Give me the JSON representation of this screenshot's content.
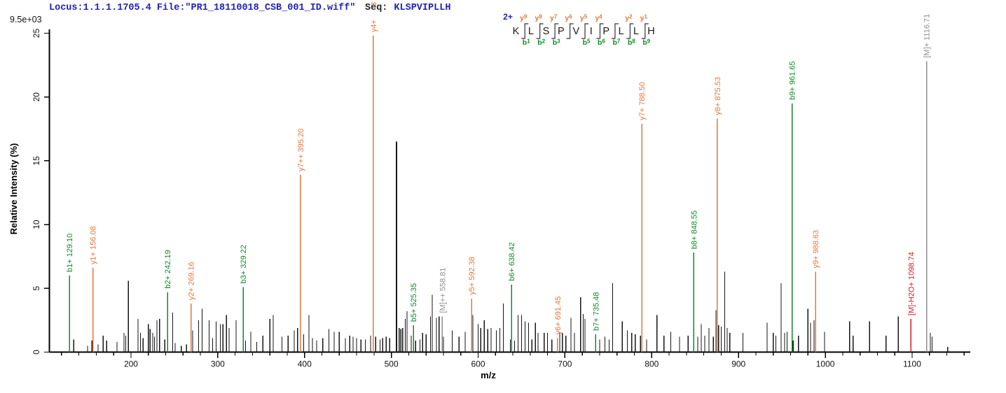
{
  "header": {
    "locus_file": "Locus:1.1.1.1705.4 File:\"PR1_18110018_CSB_001_ID.wiff\"",
    "seq_label": "Seq:",
    "seq_value": "KLSPVIPLLH",
    "max_intensity": "9.5e+03"
  },
  "peptide_diagram": {
    "charge": "2+",
    "residues": [
      "K",
      "L",
      "S",
      "P",
      "V",
      "I",
      "P",
      "L",
      "L",
      "H"
    ],
    "y_ions": [
      "y9",
      "y8",
      "y7",
      "y6",
      "y5",
      "y4",
      null,
      "y2",
      "y1"
    ],
    "b_ions": [
      "b1",
      "b2",
      "b3",
      null,
      "b5",
      "b6",
      "b7",
      "b8",
      "b9"
    ]
  },
  "colors": {
    "b_ion": "#108a28",
    "y_ion": "#e2793a",
    "precursor": "#8f8f8f",
    "neutral_loss": "#cc1c1c",
    "noise": "#151515",
    "header_blue": "#2222bb",
    "axis": "#000000"
  },
  "chart_data": {
    "type": "bar",
    "title": "",
    "xlabel": "m/z",
    "ylabel": "Relative  Intensity (%)",
    "xlim": [
      106,
      1167
    ],
    "ylim": [
      0,
      25
    ],
    "x_major_ticks": [
      200,
      300,
      400,
      500,
      600,
      700,
      800,
      900,
      1000,
      1100
    ],
    "x_minor_step": 20,
    "y_ticks": [
      0,
      5,
      10,
      15,
      20,
      25
    ],
    "grid": false,
    "legend": "none",
    "top_fragment": "3",
    "labeled_peaks": [
      {
        "mz": 129.1,
        "intensity": 6.0,
        "label": "b1+ 129.10",
        "ion": "b"
      },
      {
        "mz": 156.08,
        "intensity": 6.6,
        "label": "y1+ 156.08",
        "ion": "y"
      },
      {
        "mz": 242.19,
        "intensity": 4.7,
        "label": "b2+ 242.19",
        "ion": "b"
      },
      {
        "mz": 269.16,
        "intensity": 3.8,
        "label": "y2+ 269.16",
        "ion": "y"
      },
      {
        "mz": 329.22,
        "intensity": 5.1,
        "label": "b3+ 329.22",
        "ion": "b"
      },
      {
        "mz": 395.2,
        "intensity": 13.9,
        "label": "y7++ 395.20",
        "ion": "y"
      },
      {
        "mz": 479.3,
        "intensity": 24.8,
        "label": "y4+",
        "ion": "y"
      },
      {
        "mz": 525.35,
        "intensity": 2.1,
        "label": "b5+ 525.35",
        "ion": "b"
      },
      {
        "mz": 558.81,
        "intensity": 2.8,
        "label": "[M]++ 558.81",
        "ion": "M"
      },
      {
        "mz": 592.38,
        "intensity": 4.2,
        "label": "y5+ 592.38",
        "ion": "y"
      },
      {
        "mz": 638.42,
        "intensity": 5.3,
        "label": "b6+ 638.42",
        "ion": "b"
      },
      {
        "mz": 691.45,
        "intensity": 1.1,
        "label": "y6+ 691.45",
        "ion": "y"
      },
      {
        "mz": 735.48,
        "intensity": 1.4,
        "label": "b7+ 735.48",
        "ion": "b"
      },
      {
        "mz": 788.5,
        "intensity": 17.9,
        "label": "y7+ 788.50",
        "ion": "y"
      },
      {
        "mz": 848.55,
        "intensity": 7.8,
        "label": "b8+ 848.55",
        "ion": "b"
      },
      {
        "mz": 875.53,
        "intensity": 18.3,
        "label": "y8+ 875.53",
        "ion": "y"
      },
      {
        "mz": 961.65,
        "intensity": 19.5,
        "label": "b9+ 961.65",
        "ion": "b"
      },
      {
        "mz": 988.63,
        "intensity": 6.3,
        "label": "y9+ 988.63",
        "ion": "y"
      },
      {
        "mz": 1098.74,
        "intensity": 2.6,
        "label": "[M]-H2O+ 1098.74",
        "ion": "loss"
      },
      {
        "mz": 1116.71,
        "intensity": 22.8,
        "label": "[M]+ 1116.71",
        "ion": "M"
      }
    ],
    "noise_peaks": [
      [
        134,
        1.0
      ],
      [
        150,
        0.5
      ],
      [
        155,
        0.9
      ],
      [
        162,
        0.6
      ],
      [
        168,
        1.3
      ],
      [
        172,
        0.9
      ],
      [
        184,
        0.8
      ],
      [
        192,
        1.5
      ],
      [
        194,
        1.3
      ],
      [
        197,
        5.6
      ],
      [
        208,
        2.6
      ],
      [
        211,
        1.5
      ],
      [
        214,
        1.1
      ],
      [
        220,
        2.2
      ],
      [
        222,
        1.8
      ],
      [
        225,
        1.5
      ],
      [
        227,
        1.2
      ],
      [
        230,
        2.5
      ],
      [
        233,
        2.6
      ],
      [
        239,
        1.0
      ],
      [
        248,
        3.1
      ],
      [
        251,
        0.7
      ],
      [
        258,
        0.5
      ],
      [
        264,
        0.6
      ],
      [
        271,
        1.7
      ],
      [
        278,
        2.5
      ],
      [
        282,
        3.4
      ],
      [
        290,
        2.5
      ],
      [
        294,
        1.1
      ],
      [
        298,
        2.4
      ],
      [
        303,
        2.2
      ],
      [
        306,
        2.2
      ],
      [
        310,
        2.9
      ],
      [
        313,
        1.9
      ],
      [
        321,
        2.5
      ],
      [
        332,
        0.9
      ],
      [
        338,
        1.6
      ],
      [
        345,
        0.8
      ],
      [
        352,
        1.3
      ],
      [
        360,
        2.6
      ],
      [
        364,
        2.9
      ],
      [
        374,
        1.2
      ],
      [
        381,
        1.3
      ],
      [
        388,
        1.7
      ],
      [
        392,
        1.9
      ],
      [
        399,
        1.4
      ],
      [
        405,
        2.9
      ],
      [
        409,
        1.1
      ],
      [
        414,
        0.9
      ],
      [
        421,
        1.1
      ],
      [
        428,
        1.8
      ],
      [
        434,
        1.6
      ],
      [
        440,
        1.6
      ],
      [
        447,
        1.1
      ],
      [
        452,
        1.3
      ],
      [
        456,
        1.2
      ],
      [
        460,
        1.1
      ],
      [
        465,
        1.0
      ],
      [
        470,
        1.0
      ],
      [
        476,
        1.3
      ],
      [
        482,
        1.2
      ],
      [
        487,
        1.0
      ],
      [
        490,
        1.1
      ],
      [
        494,
        1.2
      ],
      [
        498,
        1.1
      ],
      [
        506,
        16.5
      ],
      [
        509,
        1.9
      ],
      [
        511,
        1.8
      ],
      [
        513,
        1.9
      ],
      [
        516,
        2.6
      ],
      [
        518,
        3.2
      ],
      [
        523,
        1.3
      ],
      [
        528,
        0.9
      ],
      [
        533,
        1.0
      ],
      [
        536,
        1.5
      ],
      [
        540,
        1.4
      ],
      [
        545,
        2.8
      ],
      [
        547,
        4.5
      ],
      [
        552,
        2.7
      ],
      [
        555,
        2.8
      ],
      [
        560,
        1.2
      ],
      [
        570,
        1.7
      ],
      [
        578,
        1.2
      ],
      [
        585,
        1.6
      ],
      [
        594,
        2.9
      ],
      [
        600,
        2.2
      ],
      [
        603,
        1.9
      ],
      [
        607,
        2.5
      ],
      [
        611,
        1.8
      ],
      [
        615,
        1.9
      ],
      [
        621,
        1.7
      ],
      [
        625,
        1.9
      ],
      [
        629,
        3.8
      ],
      [
        637,
        1.0
      ],
      [
        642,
        0.9
      ],
      [
        646,
        2.9
      ],
      [
        650,
        2.9
      ],
      [
        654,
        2.4
      ],
      [
        658,
        2.3
      ],
      [
        662,
        1.0
      ],
      [
        666,
        2.3
      ],
      [
        669,
        1.5
      ],
      [
        676,
        1.5
      ],
      [
        680,
        1.5
      ],
      [
        685,
        1.0
      ],
      [
        694,
        1.5
      ],
      [
        697,
        1.5
      ],
      [
        701,
        1.3
      ],
      [
        707,
        2.7
      ],
      [
        711,
        1.5
      ],
      [
        718,
        4.3
      ],
      [
        721,
        3.0
      ],
      [
        723,
        2.6
      ],
      [
        740,
        1.0
      ],
      [
        746,
        1.2
      ],
      [
        751,
        1.0
      ],
      [
        755,
        5.4
      ],
      [
        766,
        2.4
      ],
      [
        772,
        1.7
      ],
      [
        777,
        1.5
      ],
      [
        781,
        1.4
      ],
      [
        787,
        1.3
      ],
      [
        794,
        1.0
      ],
      [
        806,
        2.9
      ],
      [
        814,
        1.3
      ],
      [
        822,
        1.6
      ],
      [
        832,
        1.2
      ],
      [
        842,
        1.3
      ],
      [
        853,
        1.2
      ],
      [
        857,
        2.2
      ],
      [
        861,
        1.3
      ],
      [
        866,
        1.9
      ],
      [
        871,
        1.2
      ],
      [
        874,
        3.3
      ],
      [
        877,
        2.1
      ],
      [
        880,
        2.0
      ],
      [
        884,
        6.3
      ],
      [
        887,
        1.9
      ],
      [
        890,
        1.5
      ],
      [
        905,
        1.5
      ],
      [
        933,
        2.3
      ],
      [
        940,
        1.5
      ],
      [
        943,
        1.3
      ],
      [
        949,
        5.4
      ],
      [
        953,
        1.5
      ],
      [
        956,
        1.6
      ],
      [
        963,
        0.9
      ],
      [
        969,
        1.3
      ],
      [
        980,
        3.4
      ],
      [
        983,
        2.3
      ],
      [
        987,
        2.5
      ],
      [
        999,
        1.6
      ],
      [
        1028,
        2.4
      ],
      [
        1032,
        1.3
      ],
      [
        1051,
        2.4
      ],
      [
        1070,
        1.3
      ],
      [
        1084,
        2.8
      ],
      [
        1121,
        1.5
      ],
      [
        1123,
        1.2
      ],
      [
        1141,
        0.4
      ]
    ]
  }
}
